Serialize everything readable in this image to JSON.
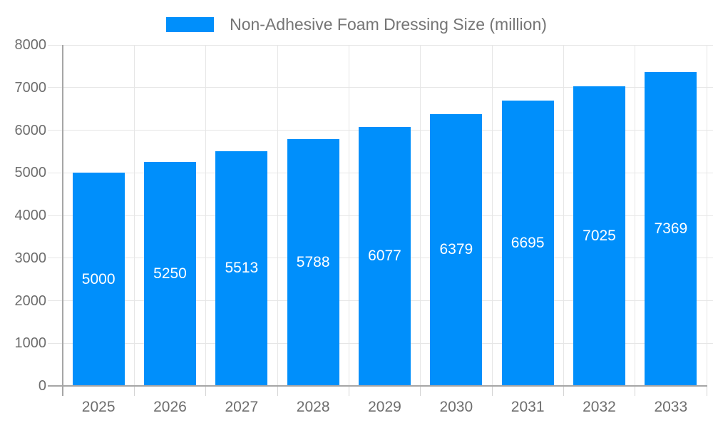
{
  "legend": {
    "series_label": "Non-Adhesive Foam Dressing Size (million)"
  },
  "chart_data": {
    "type": "bar",
    "title": "Non-Adhesive Foam Dressing Size (million)",
    "categories": [
      "2025",
      "2026",
      "2027",
      "2028",
      "2029",
      "2030",
      "2031",
      "2032",
      "2033"
    ],
    "series": [
      {
        "name": "Non-Adhesive Foam Dressing Size (million)",
        "values": [
          5000,
          5250,
          5513,
          5788,
          6077,
          6379,
          6695,
          7025,
          7369
        ]
      }
    ],
    "data_labels_shown": true,
    "xlabel": "",
    "ylabel": "",
    "ylim": [
      0,
      8000
    ],
    "yticks": [
      0,
      1000,
      2000,
      3000,
      4000,
      5000,
      6000,
      7000,
      8000
    ],
    "grid": true,
    "legend_position": "top",
    "colors": {
      "bar": "#008FFB",
      "bar_value_label": "#ffffff",
      "axis_text": "#6e6e6e",
      "legend_text": "#757575",
      "gridline": "#e6e6e6",
      "axis_line": "#a6a6a6",
      "minor_tick": "#d4d4d4"
    }
  }
}
